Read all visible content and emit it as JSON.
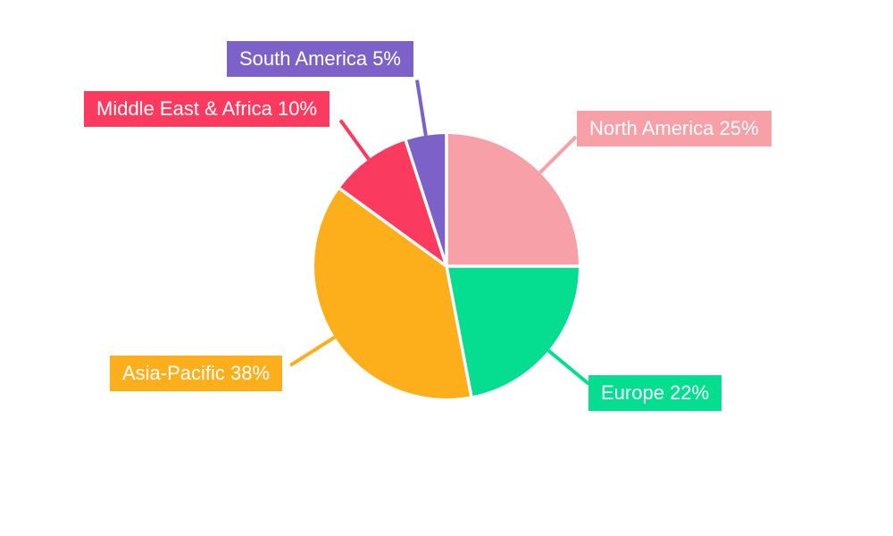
{
  "chart_data": {
    "type": "pie",
    "legend_position": "none",
    "label_style": "callout-boxes",
    "start_angle_deg": 0,
    "direction": "clockwise",
    "background_color": "#FFFFFF",
    "separator_color": "#FFFFFF",
    "label_text_color": "#FFFFFF",
    "slices": [
      {
        "label": "North America",
        "value": 25,
        "display": "North America 25%",
        "color": "#F8A0A8"
      },
      {
        "label": "Europe",
        "value": 22,
        "display": "Europe 22%",
        "color": "#05DD91"
      },
      {
        "label": "Asia-Pacific",
        "value": 38,
        "display": "Asia-Pacific 38%",
        "color": "#FCAF1A"
      },
      {
        "label": "Middle East & Africa",
        "value": 10,
        "display": "Middle East & Africa 10%",
        "color": "#FA3A5F"
      },
      {
        "label": "South America",
        "value": 5,
        "display": "South America 5%",
        "color": "#7C62C8"
      }
    ]
  }
}
